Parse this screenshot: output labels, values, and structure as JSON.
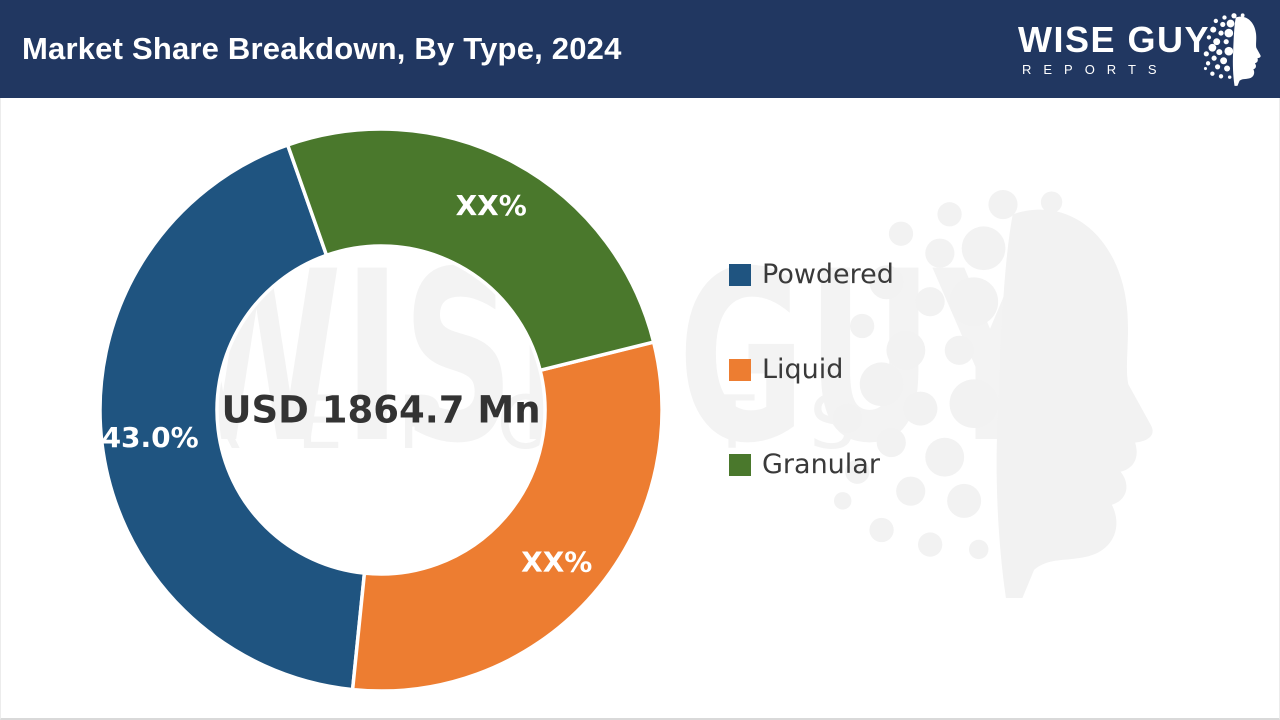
{
  "header": {
    "title": "Market Share Breakdown, By Type, 2024",
    "brand": {
      "name": "WISE GUY",
      "subtitle": "REPORTS"
    }
  },
  "watermark": {
    "line1": "WISE GUY",
    "line2": "REPORTS"
  },
  "colors": {
    "header_bg": "#213761",
    "powdered_blue": "#1F5480",
    "liquid_orange": "#ED7D31",
    "granular_green": "#4A782C",
    "text_dark": "#333333",
    "watermark_gray": "#F3F3F3"
  },
  "chart_data": {
    "type": "pie",
    "subtype": "donut",
    "title": "Market Share Breakdown, By Type, 2024",
    "center_label": "USD 1864.7 Mn",
    "start_angle_deg": 109.4,
    "direction": "counterclockwise",
    "legend_position": "right",
    "series": [
      {
        "name": "Powdered",
        "label": "43.0%",
        "value": 43.0,
        "color": "#1F5480"
      },
      {
        "name": "Liquid",
        "label": "XX%",
        "value": 30.5,
        "color": "#ED7D31"
      },
      {
        "name": "Granular",
        "label": "XX%",
        "value": 26.5,
        "color": "#4A782C"
      }
    ]
  }
}
